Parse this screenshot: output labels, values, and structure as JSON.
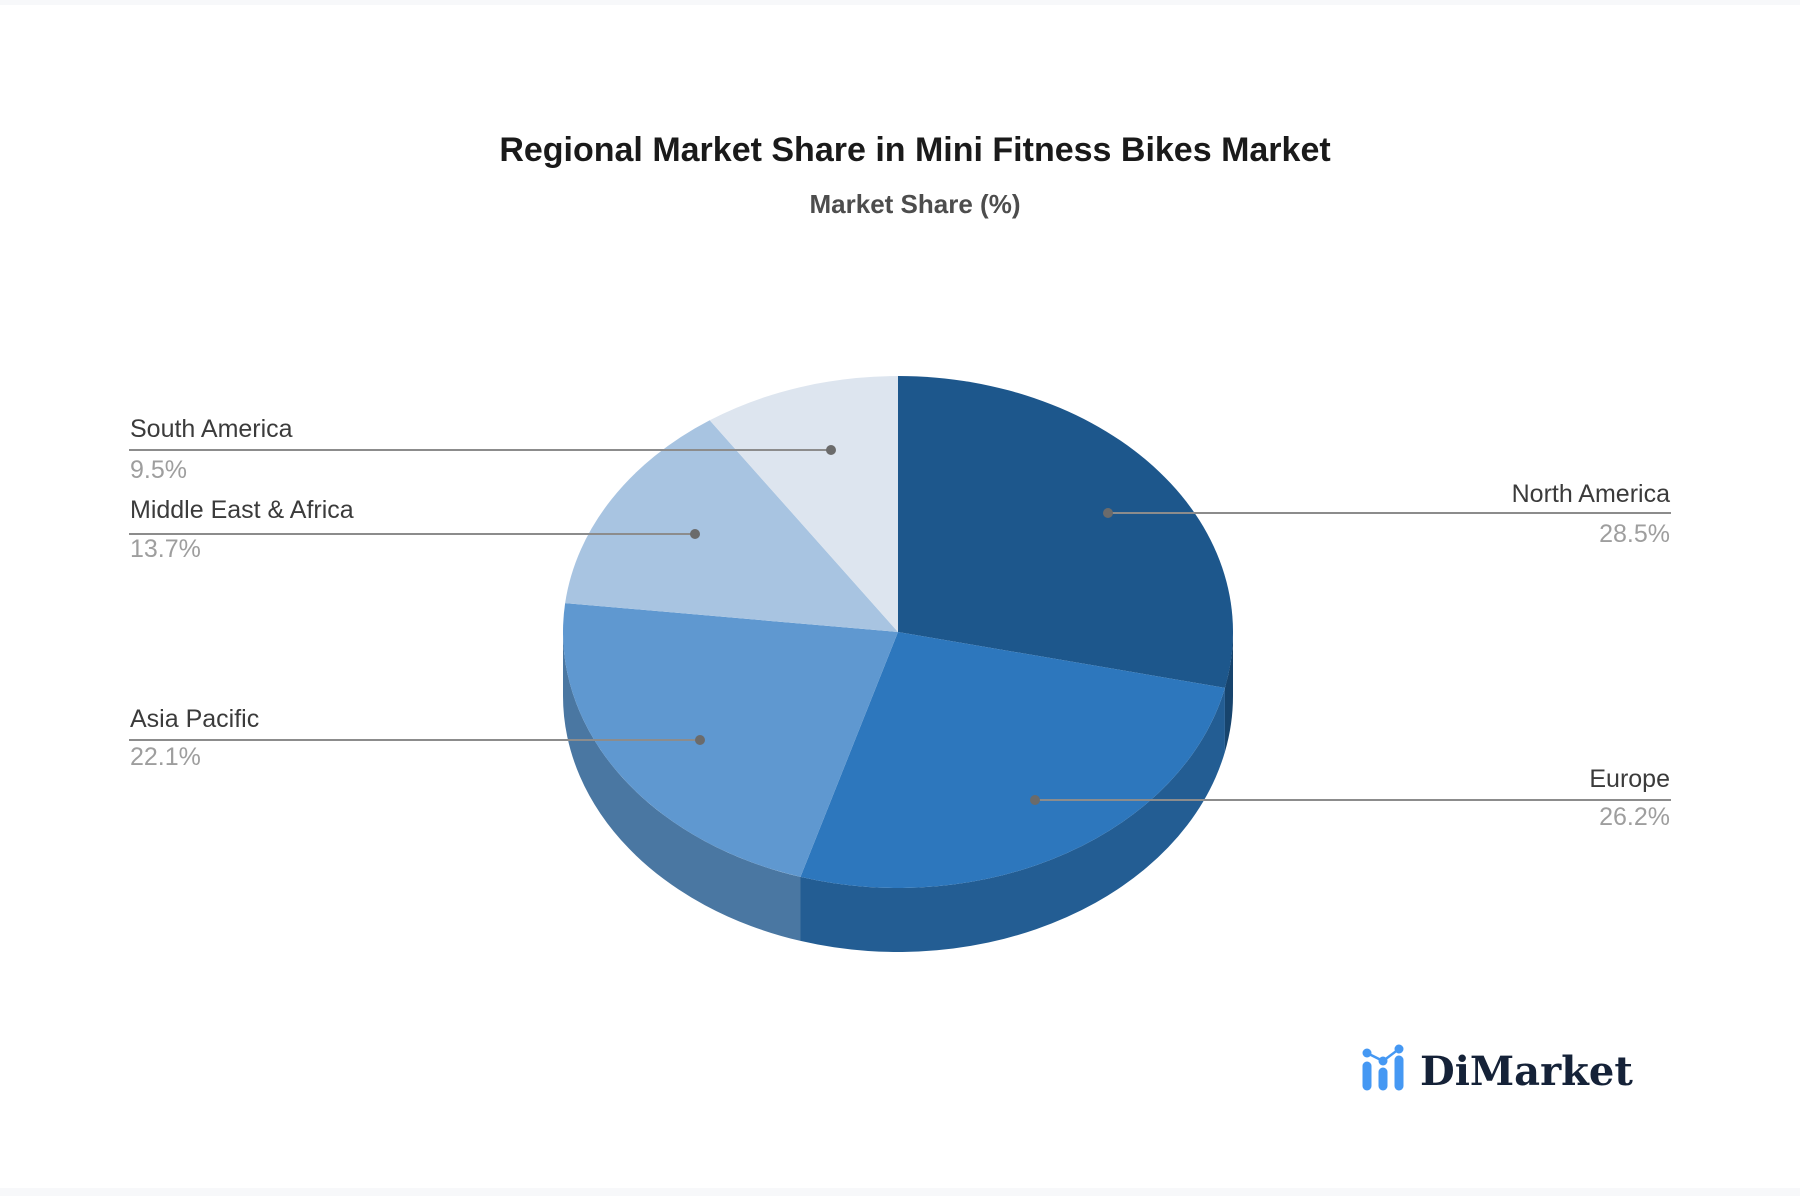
{
  "title": "Regional Market Share in Mini Fitness Bikes Market",
  "subtitle": "Market Share (%)",
  "brand": {
    "name": "DiMarket"
  },
  "callouts": {
    "north_america": {
      "name": "North America",
      "pct": "28.5%"
    },
    "europe": {
      "name": "Europe",
      "pct": "26.2%"
    },
    "asia_pacific": {
      "name": "Asia Pacific",
      "pct": "22.1%"
    },
    "mea": {
      "name": "Middle East & Africa",
      "pct": "13.7%"
    },
    "south_america": {
      "name": "South America",
      "pct": "9.5%"
    }
  },
  "chart_data": {
    "type": "pie",
    "style": "3d-pie",
    "title": "Regional Market Share in Mini Fitness Bikes Market",
    "subtitle": "Market Share (%)",
    "unit": "%",
    "labels": [
      "North America",
      "Europe",
      "Asia Pacific",
      "Middle East & Africa",
      "South America"
    ],
    "values": [
      28.5,
      26.2,
      22.1,
      13.7,
      9.5
    ],
    "colors": [
      "#1d578c",
      "#2d77bd",
      "#5f98d0",
      "#a8c4e1",
      "#dde5ef"
    ],
    "start_angle": "12-oclock",
    "direction": "clockwise",
    "legend": "none",
    "label_style": "callout lines with name above line and percent below"
  }
}
